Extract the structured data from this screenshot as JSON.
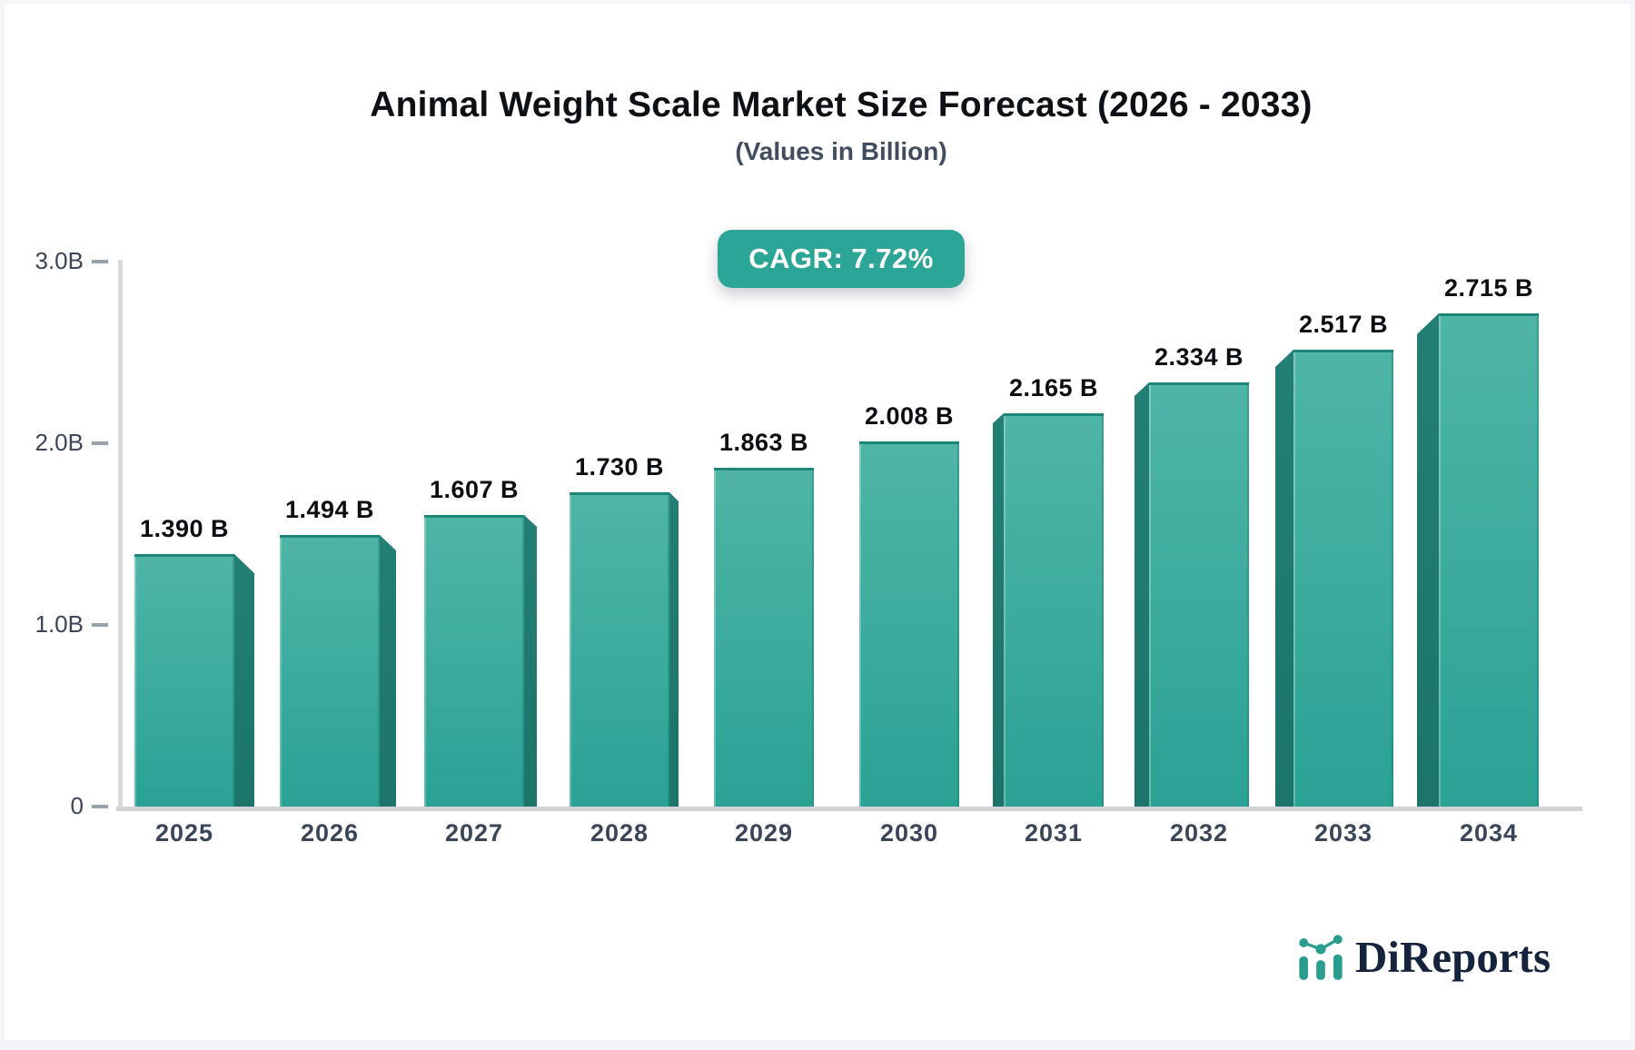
{
  "brand": {
    "name": "DiReports",
    "icon": "bar-chart-logo-icon"
  },
  "colors": {
    "bar_face_top": "#4fb5a7",
    "bar_face_bottom": "#2aa294",
    "bar_side_face": "#1e7b70",
    "badge_background": "#2aa596",
    "badge_text": "#ffffff",
    "axis_line": "#d3d5da",
    "brand_navy": "#16233d",
    "brand_teal": "#2a9d8f"
  },
  "chart_data": {
    "type": "bar",
    "title": "Animal Weight Scale Market Size Forecast (2026 - 2033)",
    "subtitle": "(Values in Billion)",
    "cagr_label": "CAGR: 7.72%",
    "categories": [
      "2025",
      "2026",
      "2027",
      "2028",
      "2029",
      "2030",
      "2031",
      "2032",
      "2033",
      "2034"
    ],
    "values": [
      1.39,
      1.494,
      1.607,
      1.73,
      1.863,
      2.008,
      2.165,
      2.334,
      2.517,
      2.715
    ],
    "value_labels": [
      "1.390 B",
      "1.494 B",
      "1.607 B",
      "1.730 B",
      "1.863 B",
      "2.008 B",
      "2.165 B",
      "2.334 B",
      "2.517 B",
      "2.715 B"
    ],
    "unit": "Billion",
    "xlabel": "",
    "ylabel": "",
    "ylim": [
      0,
      3.0
    ],
    "yticks": [
      {
        "value": 0,
        "label": "0"
      },
      {
        "value": 1,
        "label": "1.0B"
      },
      {
        "value": 2,
        "label": "2.0B"
      },
      {
        "value": 3,
        "label": "3.0B"
      }
    ],
    "grid": false,
    "legend": null,
    "bar_style": "3d-extruded-teal-gradient"
  }
}
